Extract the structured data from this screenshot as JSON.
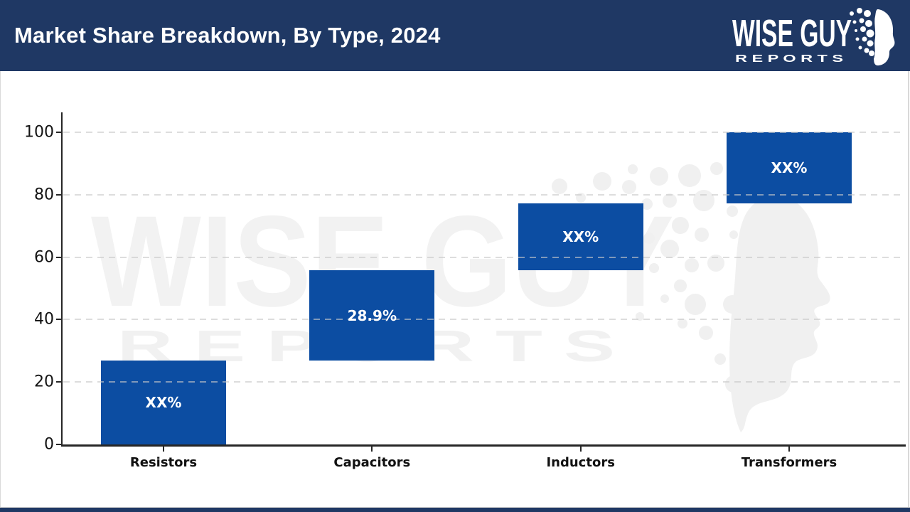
{
  "header": {
    "title": "Market Share Breakdown, By Type, 2024",
    "logo_line1": "WISE GUY",
    "logo_line2": "R E P O R T S"
  },
  "watermark": {
    "line1": "WISE GUY",
    "line2": "R E P O R T S"
  },
  "chart_data": {
    "type": "bar",
    "subtype": "floating-waterfall-bars",
    "title": "Market Share Breakdown, By Type, 2024",
    "categories": [
      "Resistors",
      "Capacitors",
      "Inductors",
      "Transformers"
    ],
    "segments": [
      {
        "category": "Resistors",
        "start": 0,
        "end": 26.8,
        "label": "XX%"
      },
      {
        "category": "Capacitors",
        "start": 26.8,
        "end": 55.7,
        "label": "28.9%"
      },
      {
        "category": "Inductors",
        "start": 55.7,
        "end": 77.2,
        "label": "XX%"
      },
      {
        "category": "Transformers",
        "start": 77.2,
        "end": 100,
        "label": "XX%"
      }
    ],
    "ylim": [
      0,
      100
    ],
    "yticks": [
      0,
      20,
      40,
      60,
      80,
      100
    ],
    "xlabel": "",
    "ylabel": "",
    "grid": "horizontal dashed, drawn over bars",
    "legend": "none",
    "bar_color": "#0c4da2",
    "bar_label_color": "#ffffff"
  },
  "colors": {
    "header_bg": "#1f3864",
    "footer_bg": "#1f3864",
    "bar": "#0c4da2",
    "grid": "#d9d9d9",
    "axis": "#262626",
    "watermark": "#f1f1f1"
  }
}
